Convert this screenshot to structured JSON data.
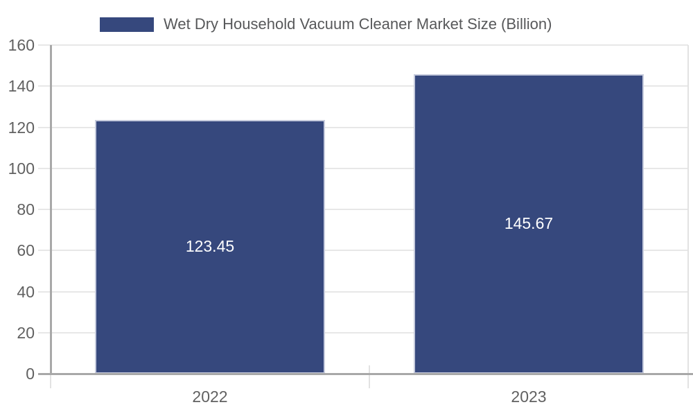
{
  "legend": {
    "label": "Wet Dry Household Vacuum Cleaner Market Size (Billion)"
  },
  "chart_data": {
    "type": "bar",
    "title": "",
    "xlabel": "",
    "ylabel": "",
    "categories": [
      "2022",
      "2023"
    ],
    "series": [
      {
        "name": "Wet Dry Household Vacuum Cleaner Market Size (Billion)",
        "values": [
          123.45,
          145.67
        ]
      }
    ],
    "values": [
      123.45,
      145.67
    ],
    "data_labels": [
      "123.45",
      "145.67"
    ],
    "ylim": [
      0,
      160
    ],
    "yticks": [
      0,
      20,
      40,
      60,
      80,
      100,
      120,
      140,
      160
    ],
    "grid": true,
    "legend_position": "top",
    "colors": {
      "bar_fill": "#36487d",
      "bar_stroke": "#c6cbdd",
      "data_label": "#ffffff",
      "grid_line": "#e7e7e7",
      "axis_line": "#a8a8a8",
      "tick_label": "#616161",
      "legend_text": "#57585a",
      "background": "#ffffff"
    }
  }
}
